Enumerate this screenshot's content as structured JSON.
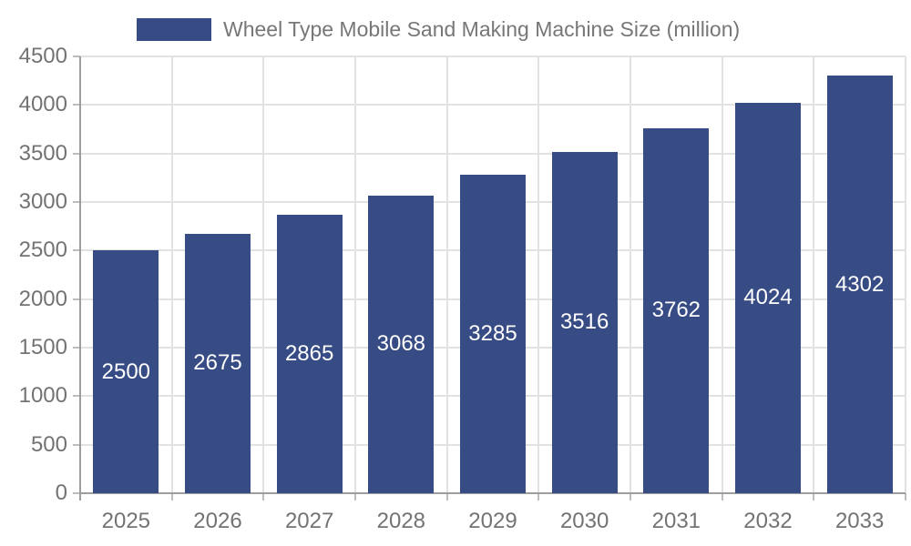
{
  "chart_data": {
    "type": "bar",
    "title": "Wheel Type Mobile Sand Making Machine Size (million)",
    "legend": {
      "position": "top",
      "label": "Wheel Type Mobile Sand Making Machine Size (million)"
    },
    "categories": [
      "2025",
      "2026",
      "2027",
      "2028",
      "2029",
      "2030",
      "2031",
      "2032",
      "2033"
    ],
    "values": [
      2500,
      2675,
      2865,
      3068,
      3285,
      3516,
      3762,
      4024,
      4302
    ],
    "value_labels": [
      "2500",
      "2675",
      "2865",
      "3068",
      "3285",
      "3516",
      "3762",
      "4024",
      "4302"
    ],
    "y_tick_labels": [
      "0",
      "500",
      "1000",
      "1500",
      "2000",
      "2500",
      "3000",
      "3500",
      "4000",
      "4500"
    ],
    "xlabel": "",
    "ylabel": "",
    "ylim": [
      0,
      4500
    ],
    "ytick_step": 500,
    "grid": true,
    "colors": {
      "bar": "#374B85",
      "value_label": "#ffffff",
      "axis_line": "#9e9e9e",
      "gridline": "#e2e2e2",
      "tick": "#bdbdbd",
      "axis_text": "#737373",
      "legend_text": "#777777"
    }
  }
}
